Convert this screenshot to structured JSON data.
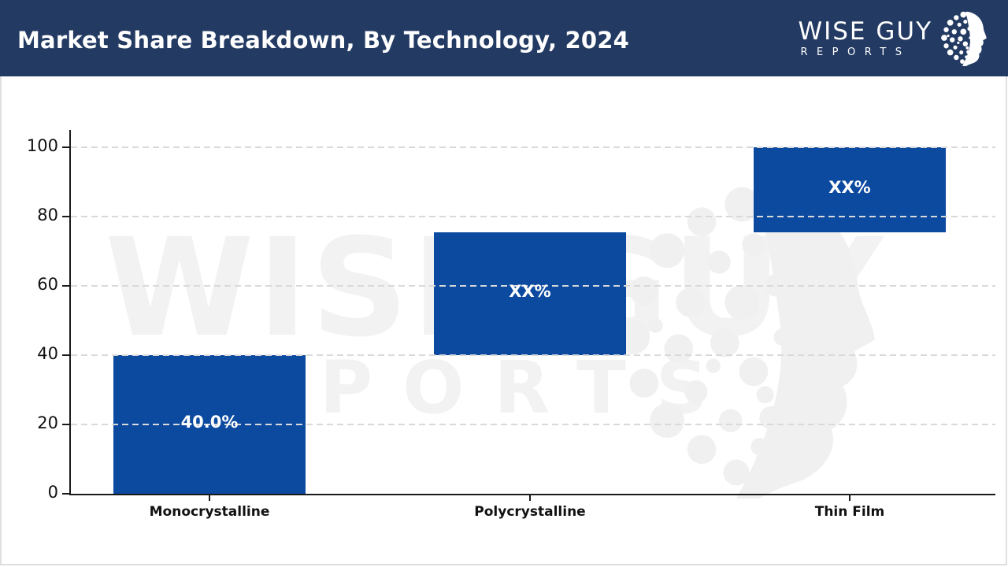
{
  "header": {
    "title": "Market Share Breakdown, By Technology, 2024",
    "bg_color": "#233A63",
    "logo": {
      "line1": "WISE GUY",
      "line2": "REPORTS"
    }
  },
  "watermark": {
    "line1": "WISE GUY",
    "line2": "REPORTS"
  },
  "chart_data": {
    "type": "bar",
    "subtype": "waterfall",
    "title": "Market Share Breakdown, By Technology, 2024",
    "categories": [
      "Monocrystalline",
      "Polycrystalline",
      "Thin Film"
    ],
    "series": [
      {
        "name": "Market share (%)",
        "segments": [
          {
            "start": 0,
            "end": 40,
            "label": "40.0%"
          },
          {
            "start": 40,
            "end": 75.5,
            "label": "XX%"
          },
          {
            "start": 75.5,
            "end": 100,
            "label": "XX%"
          }
        ]
      }
    ],
    "xlabel": "",
    "ylabel": "",
    "ylim": [
      0,
      105
    ],
    "yticks": [
      0,
      20,
      40,
      60,
      80,
      100
    ],
    "grid": "horizontal-dashed",
    "legend": "none",
    "colors": {
      "bar": "#0C4AA0",
      "bar_label": "#FFFFFF",
      "grid": "#D9D9D9",
      "axis": "#1A1A1A",
      "header_bg": "#233A63",
      "watermark": "#F2F2F2"
    }
  }
}
